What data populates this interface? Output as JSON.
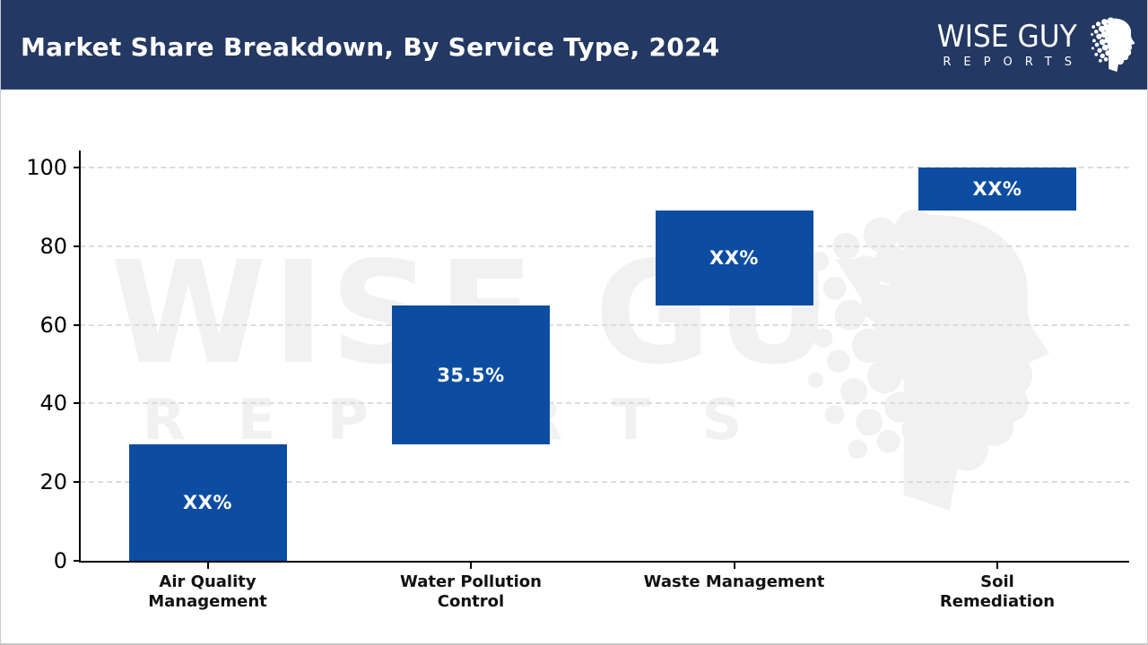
{
  "header": {
    "title": "Market Share Breakdown, By Service Type, 2024",
    "logo": {
      "line1": "WISE GUY",
      "line2": "REPORTS"
    }
  },
  "watermark": {
    "line1": "WISE GUY",
    "line2": "REPORTS"
  },
  "colors": {
    "header_bg": "#233862",
    "bar_blue": "#0d4da1",
    "gridline": "#dcdcdc",
    "axis": "#000000",
    "bar_label_text": "#ffffff",
    "watermark": "#f1f1f1"
  },
  "chart_data": {
    "type": "bar",
    "subtype": "waterfall-stacked-percentage",
    "title": "Market Share Breakdown, By Service Type, 2024",
    "categories": [
      [
        "Air Quality",
        "Management"
      ],
      [
        "Water Pollution",
        "Control"
      ],
      [
        "Waste Management"
      ],
      [
        "Soil Remediation"
      ]
    ],
    "segments": [
      {
        "start": 0,
        "end": 29.5,
        "label": "XX%"
      },
      {
        "start": 29.5,
        "end": 65.0,
        "label": "35.5%"
      },
      {
        "start": 65.0,
        "end": 89.0,
        "label": "XX%"
      },
      {
        "start": 89.0,
        "end": 100.0,
        "label": "XX%"
      }
    ],
    "yticks": [
      0,
      20,
      40,
      60,
      80,
      100
    ],
    "ylim": [
      0,
      104
    ],
    "xlabel": "",
    "ylabel": "",
    "grid": "horizontal-dashed",
    "legend": "none"
  }
}
